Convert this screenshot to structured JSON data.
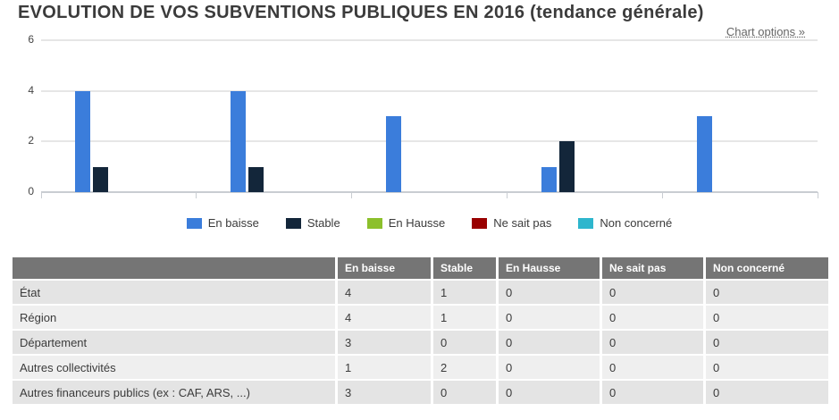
{
  "header": {
    "title": "EVOLUTION DE VOS SUBVENTIONS PUBLIQUES EN 2016 (tendance générale)",
    "chart_options_label": "Chart options »"
  },
  "chart_data": {
    "type": "bar",
    "title": "EVOLUTION DE VOS SUBVENTIONS PUBLIQUES EN 2016 (tendance générale)",
    "categories": [
      "État",
      "Région",
      "Département",
      "Autres collectivités",
      "Autres financeurs publics (ex : CAF, ARS, ...)"
    ],
    "series": [
      {
        "name": "En baisse",
        "color": "#3b7ddb",
        "values": [
          4,
          4,
          3,
          1,
          3
        ]
      },
      {
        "name": "Stable",
        "color": "#13263a",
        "values": [
          1,
          1,
          0,
          2,
          0
        ]
      },
      {
        "name": "En Hausse",
        "color": "#8cc02c",
        "values": [
          0,
          0,
          0,
          0,
          0
        ]
      },
      {
        "name": "Ne sait pas",
        "color": "#990000",
        "values": [
          0,
          0,
          0,
          0,
          0
        ]
      },
      {
        "name": "Non concerné",
        "color": "#2eb6cd",
        "values": [
          0,
          0,
          0,
          0,
          0
        ]
      }
    ],
    "xlabel": "",
    "ylabel": "",
    "ylim": [
      0,
      6
    ],
    "yticks": [
      0,
      2,
      4,
      6
    ],
    "grid": true,
    "legend_position": "bottom"
  },
  "table": {
    "columns": [
      "",
      "En baisse",
      "Stable",
      "En Hausse",
      "Ne sait pas",
      "Non concerné"
    ],
    "rows": [
      {
        "label": "État",
        "values": [
          4,
          1,
          0,
          0,
          0
        ]
      },
      {
        "label": "Région",
        "values": [
          4,
          1,
          0,
          0,
          0
        ]
      },
      {
        "label": "Département",
        "values": [
          3,
          0,
          0,
          0,
          0
        ]
      },
      {
        "label": "Autres collectivités",
        "values": [
          1,
          2,
          0,
          0,
          0
        ]
      },
      {
        "label": "Autres financeurs publics (ex : CAF, ARS, ...)",
        "values": [
          3,
          0,
          0,
          0,
          0
        ]
      }
    ]
  }
}
